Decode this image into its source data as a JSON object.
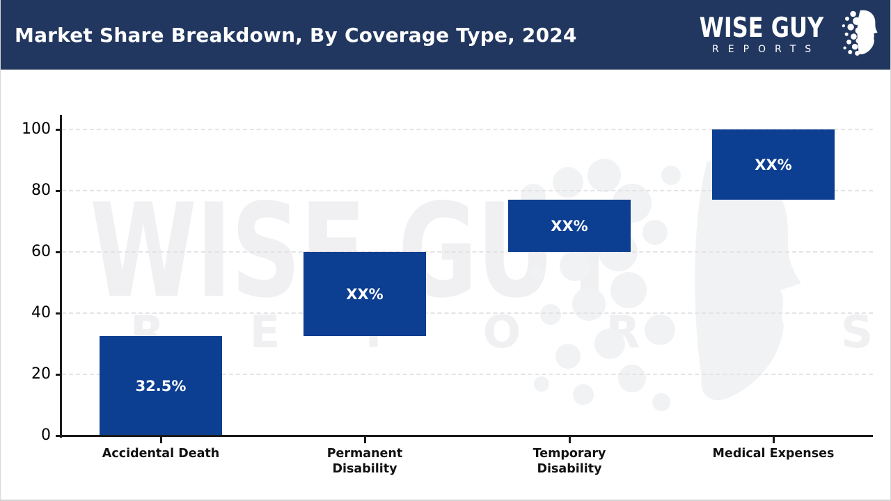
{
  "header": {
    "title": "Market Share Breakdown, By Coverage Type, 2024",
    "logo": {
      "wordmark": "WISE GUY",
      "subtitle": "REPORTS"
    }
  },
  "watermark": {
    "wordmark": "WISE GUY",
    "subtitle": "R E P O R T S"
  },
  "colors": {
    "header_background": "#21375f",
    "bar": "#0c3e91",
    "bar_label": "#ffffff",
    "watermark": "#f0f0f2",
    "watermark_graphic": "#f1f2f4"
  },
  "chart_data": {
    "type": "bar",
    "variant": "waterfall",
    "title": "Market Share Breakdown, By Coverage Type, 2024",
    "categories": [
      "Accidental Death",
      "Permanent Disability",
      "Temporary Disability",
      "Medical Expenses"
    ],
    "tick_labels": [
      "Accidental Death",
      "Permanent\nDisability",
      "Temporary\nDisability",
      "Medical Expenses"
    ],
    "segments": [
      {
        "category": "Accidental Death",
        "start": 0,
        "end": 32.5,
        "label": "32.5%"
      },
      {
        "category": "Permanent Disability",
        "start": 32.5,
        "end": 60,
        "label": "XX%"
      },
      {
        "category": "Temporary Disability",
        "start": 60,
        "end": 77,
        "label": "XX%"
      },
      {
        "category": "Medical Expenses",
        "start": 77,
        "end": 100,
        "label": "XX%"
      }
    ],
    "y_ticks": [
      0,
      20,
      40,
      60,
      80,
      100
    ],
    "ylim": [
      0,
      105
    ],
    "grid": "horizontal-dashed",
    "legend": "none",
    "xlabel": "",
    "ylabel": ""
  }
}
